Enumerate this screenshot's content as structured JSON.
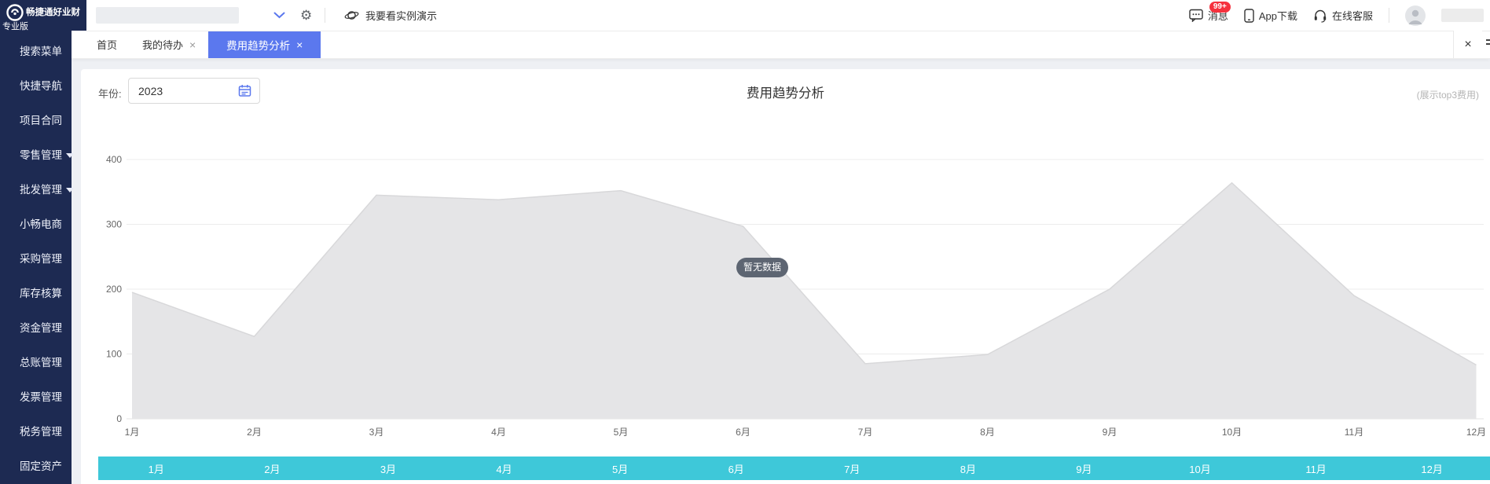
{
  "app": {
    "brand": "畅捷通好业财",
    "edition": "专业版"
  },
  "sidebar": {
    "items": [
      {
        "label": "搜索菜单",
        "has_dropdown": false
      },
      {
        "label": "快捷导航",
        "has_dropdown": false
      },
      {
        "label": "项目合同",
        "has_dropdown": false
      },
      {
        "label": "零售管理",
        "has_dropdown": true
      },
      {
        "label": "批发管理",
        "has_dropdown": true
      },
      {
        "label": "小畅电商",
        "has_dropdown": false
      },
      {
        "label": "采购管理",
        "has_dropdown": false
      },
      {
        "label": "库存核算",
        "has_dropdown": false
      },
      {
        "label": "资金管理",
        "has_dropdown": false
      },
      {
        "label": "总账管理",
        "has_dropdown": false
      },
      {
        "label": "发票管理",
        "has_dropdown": false
      },
      {
        "label": "税务管理",
        "has_dropdown": false
      },
      {
        "label": "固定资产",
        "has_dropdown": false
      }
    ]
  },
  "header": {
    "demo_label": "我要看实例演示",
    "message_label": "消息",
    "message_badge": "99+",
    "app_download_label": "App下载",
    "support_label": "在线客服"
  },
  "tabs": [
    {
      "label": "首页",
      "closable": false,
      "active": false
    },
    {
      "label": "我的待办",
      "closable": true,
      "active": false
    },
    {
      "label": "费用趋势分析",
      "closable": true,
      "active": true
    }
  ],
  "panel": {
    "year_label": "年份:",
    "year_value": "2023",
    "title": "费用趋势分析",
    "note": "(展示top3费用)",
    "empty_badge": "暂无数据"
  },
  "chart_data": {
    "type": "area",
    "title": "费用趋势分析",
    "categories": [
      "1月",
      "2月",
      "3月",
      "4月",
      "5月",
      "6月",
      "7月",
      "8月",
      "9月",
      "10月",
      "11月",
      "12月"
    ],
    "series": [
      {
        "name": "费用",
        "values": [
          195,
          127,
          345,
          338,
          352,
          297,
          85,
          99,
          200,
          364,
          190,
          83
        ]
      }
    ],
    "ylim": [
      0,
      400
    ],
    "yticks": [
      0,
      100,
      200,
      300,
      400
    ],
    "grid": true,
    "legend": "none",
    "annotation": "暂无数据",
    "area_color": "#e5e5e7",
    "line_color": "#d8d8da"
  },
  "month_bar": [
    "1月",
    "2月",
    "3月",
    "4月",
    "5月",
    "6月",
    "7月",
    "8月",
    "9月",
    "10月",
    "11月",
    "12月"
  ],
  "colors": {
    "accent_blue": "#5b78ee",
    "sidebar_navy": "#1d2a52",
    "teal_bar": "#3ec8d9",
    "badge_red": "#f5313d",
    "empty_badge_bg": "#5d6572",
    "axis_text": "#666666"
  }
}
